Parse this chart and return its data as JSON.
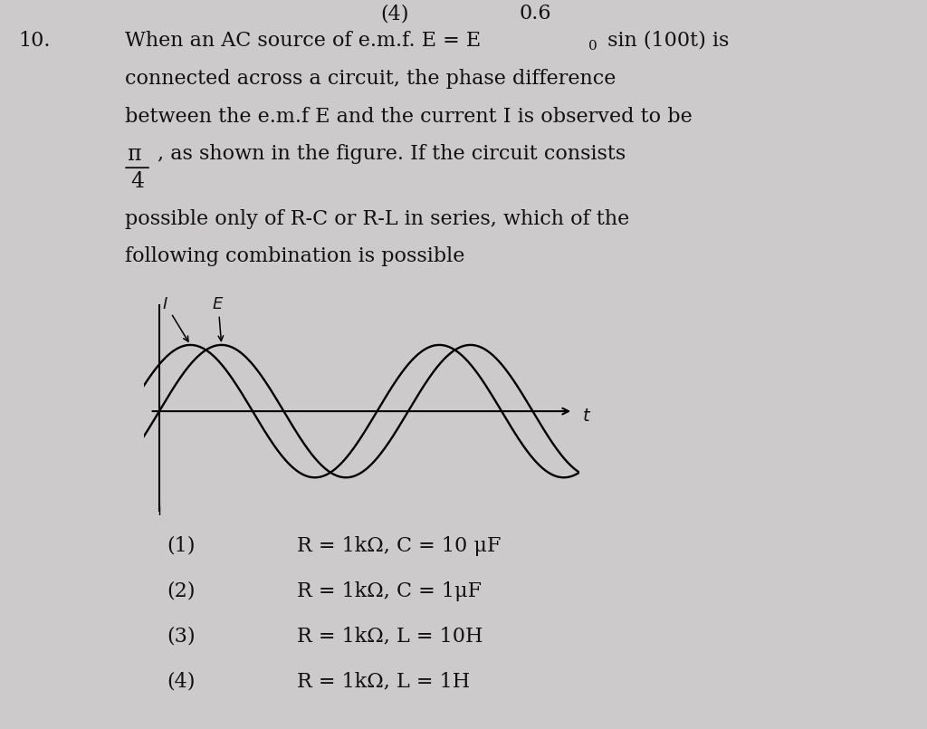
{
  "background_color": "#cccaca",
  "text_color": "#111111",
  "question_number": "10.",
  "line1a": "When an AC source of e.m.f. E = E",
  "line1b": "0",
  "line1c": " sin (100t) is",
  "line2": "connected across a circuit, the phase difference",
  "line3": "between the e.m.f E and the current I is observed to be",
  "frac_num": "π",
  "frac_den": "4",
  "frac_suffix": ", as shown in the figure. If the circuit consists",
  "body1": "possible only of R-C or R-L in series, which of the",
  "body2": "following combination is possible",
  "top_partial": [
    "(4)",
    "0.6"
  ],
  "options": [
    [
      "(1)",
      "R = 1kΩ, C = 10 μF"
    ],
    [
      "(2)",
      "R = 1kΩ, C = 1μF"
    ],
    [
      "(3)",
      "R = 1kΩ, L = 10H"
    ],
    [
      "(4)",
      "R = 1kΩ, L = 1H"
    ]
  ],
  "wave_phase_shift": 0.7854,
  "font_size": 16,
  "font_size_small": 11
}
